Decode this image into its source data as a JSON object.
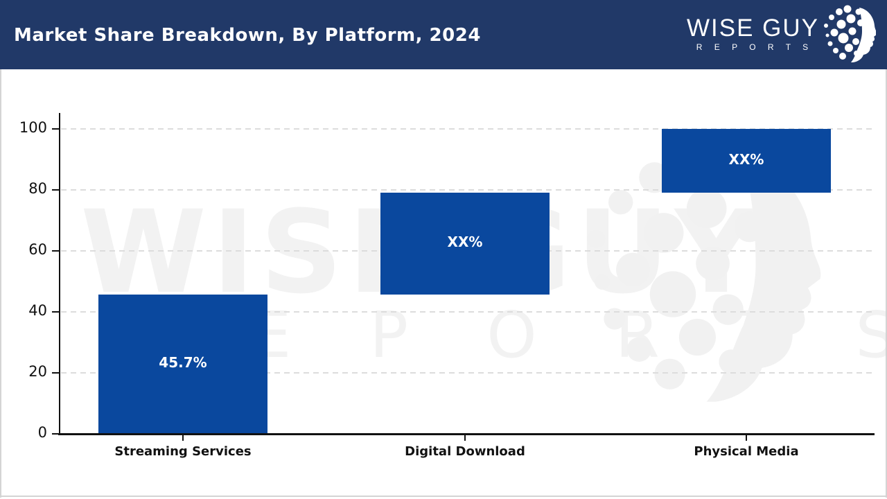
{
  "header": {
    "title": "Market Share Breakdown, By Platform, 2024",
    "logo": {
      "wordmark": "WISE GUY",
      "tagline": "R E P O R T S"
    }
  },
  "watermark": {
    "wordmark": "WISE GUY",
    "tagline": "R E P O R T S"
  },
  "colors": {
    "header_bg": "#213968",
    "bar": "#0a489e",
    "grid": "#dcdcdc",
    "axis": "#111111",
    "watermark": "#f2f2f2",
    "value_label": "#ffffff"
  },
  "chart_data": {
    "type": "bar",
    "variant": "waterfall",
    "title": "Market Share Breakdown, By Platform, 2024",
    "categories": [
      "Streaming Services",
      "Digital Download",
      "Physical Media"
    ],
    "bars": [
      {
        "category": "Streaming Services",
        "start": 0,
        "end": 45.7,
        "label": "45.7%"
      },
      {
        "category": "Digital Download",
        "start": 45.7,
        "end": 79.1,
        "label": "XX%"
      },
      {
        "category": "Physical Media",
        "start": 79.1,
        "end": 100,
        "label": "XX%"
      }
    ],
    "yticks": [
      0,
      20,
      40,
      60,
      80,
      100
    ],
    "ylim": [
      0,
      105
    ],
    "xlabel": "",
    "ylabel": "",
    "grid": "horizontal-dashed",
    "legend": "none",
    "bar_color": "#0a489e",
    "value_label_color": "#ffffff"
  }
}
